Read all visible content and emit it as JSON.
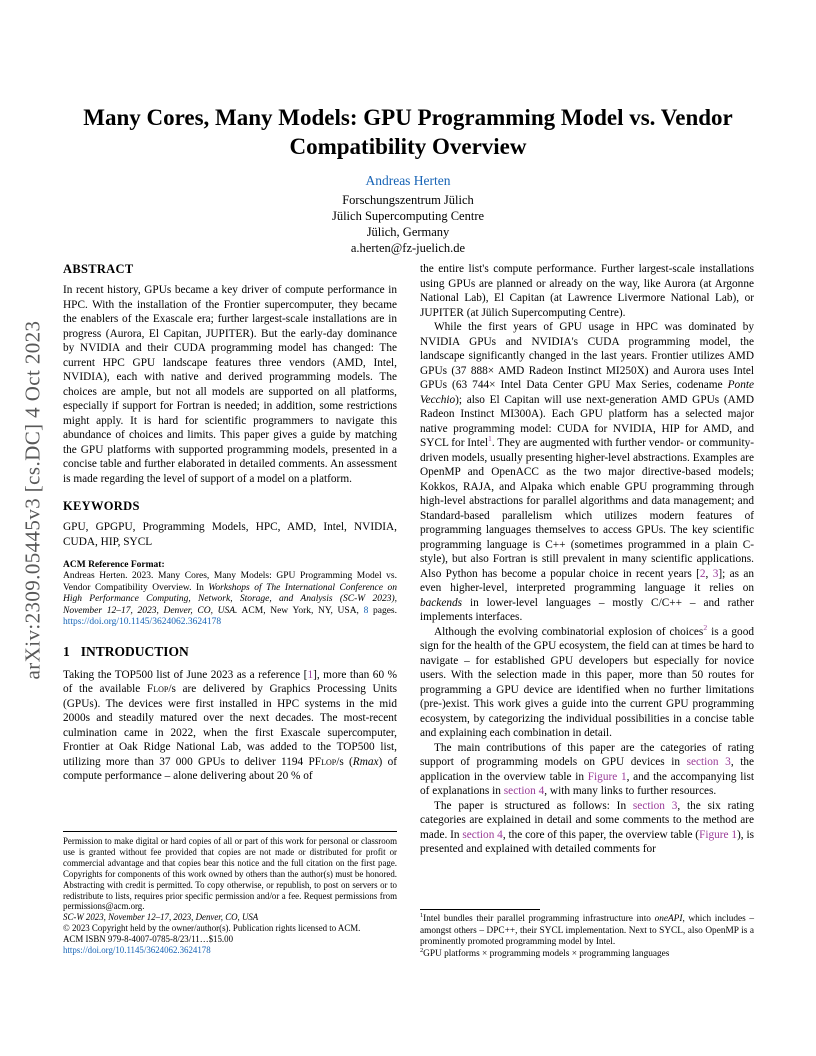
{
  "colors": {
    "link_blue": "#1663B5",
    "ref_purple": "#9A3C98",
    "watermark_gray": "#585858"
  },
  "sidebar": {
    "arxiv_label": "arXiv:2309.05445v3  [cs.DC]  4 Oct 2023"
  },
  "header": {
    "title_line1": "Many Cores, Many Models: GPU Programming Model vs. Vendor",
    "title_line2": "Compatibility Overview",
    "author": "Andreas Herten",
    "affiliation": [
      "Forschungszentrum Jülich",
      "Jülich Supercomputing Centre",
      "Jülich, Germany",
      "a.herten@fz-juelich.de"
    ]
  },
  "left_column": {
    "abstract_heading": "ABSTRACT",
    "abstract_text": "In recent history, GPUs became a key driver of compute performance in HPC. With the installation of the Frontier supercomputer, they became the enablers of the Exascale era; further largest-scale installations are in progress (Aurora, El Capitan, JUPITER). But the early-day dominance by NVIDIA and their CUDA programming model has changed: The current HPC GPU landscape features three vendors (AMD, Intel, NVIDIA), each with native and derived programming models. The choices are ample, but not all models are supported on all platforms, especially if support for Fortran is needed; in addition, some restrictions might apply. It is hard for scientific programmers to navigate this abundance of choices and limits. This paper gives a guide by matching the GPU platforms with supported programming models, presented in a concise table and further elaborated in detailed comments. An assessment is made regarding the level of support of a model on a platform.",
    "keywords_heading": "KEYWORDS",
    "keywords_text": "GPU, GPGPU, Programming Models, HPC, AMD, Intel, NVIDIA, CUDA, HIP, SYCL",
    "acm_ref_heading": "ACM Reference Format:",
    "acm_ref_segments": [
      {
        "t": "Andreas Herten. 2023. Many Cores, Many Models: GPU Programming Model vs. Vendor Compatibility Overview. In "
      },
      {
        "t": "Workshops of The International Conference on High Performance Computing, Network, Storage, and Analysis (SC-W 2023), November 12–17, 2023, Denver, CO, USA.",
        "c": "i"
      },
      {
        "t": " ACM, New York, NY, USA, "
      },
      {
        "t": "8",
        "c": "l",
        "n": "page-count-link"
      },
      {
        "t": " pages. "
      },
      {
        "t": "https://doi.org/10.1145/3624062.3624178",
        "c": "l",
        "n": "acm-ref-doi-link"
      }
    ],
    "intro_heading_num": "1",
    "intro_heading_text": "INTRODUCTION",
    "intro_segments": [
      {
        "t": "Taking the TOP500 list of June 2023 as a reference ["
      },
      {
        "t": "1",
        "c": "r",
        "n": "citation-1"
      },
      {
        "t": "], more than 60 % of the available F"
      },
      {
        "t": "lop",
        "c": "sc"
      },
      {
        "t": "/s are delivered by Graphics Processing Units (GPUs). The devices were first installed in HPC systems in the mid 2000s and steadily matured over the next decades. The most-recent culmination came in 2022, when the first Exascale supercomputer, Frontier at Oak Ridge National Lab, was added to the TOP500 list, utilizing more than 37 000 GPUs to deliver 1194 PF"
      },
      {
        "t": "lop",
        "c": "sc"
      },
      {
        "t": "/s ("
      },
      {
        "t": "Rmax",
        "c": "i"
      },
      {
        "t": ") of compute performance – alone delivering about 20 % of"
      }
    ],
    "permission_text": "Permission to make digital or hard copies of all or part of this work for personal or classroom use is granted without fee provided that copies are not made or distributed for profit or commercial advantage and that copies bear this notice and the full citation on the first page. Copyrights for components of this work owned by others than the author(s) must be honored. Abstracting with credit is permitted. To copy otherwise, or republish, to post on servers or to redistribute to lists, requires prior specific permission and/or a fee. Request permissions from permissions@acm.org.",
    "conference_line": "SC-W 2023, November 12–17, 2023, Denver, CO, USA",
    "copyright_line": "© 2023 Copyright held by the owner/author(s). Publication rights licensed to ACM.",
    "isbn_line": "ACM ISBN 979-8-4007-0785-8/23/11…$15.00",
    "doi_link": "https://doi.org/10.1145/3624062.3624178"
  },
  "right_column": {
    "para1": [
      {
        "t": "the entire list's compute performance. Further largest-scale installations using GPUs are planned or already on the way, like Aurora (at Argonne National Lab), El Capitan (at Lawrence Livermore National Lab), or JUPITER (at Jülich Supercomputing Centre)."
      }
    ],
    "para2": [
      {
        "t": "While the first years of GPU usage in HPC was dominated by NVIDIA GPUs and NVIDIA's CUDA programming model, the landscape significantly changed in the last years. Frontier utilizes AMD GPUs (37 888× AMD Radeon Instinct MI250X) and Aurora uses Intel GPUs (63 744× Intel Data Center GPU Max Series, codename "
      },
      {
        "t": "Ponte Vecchio",
        "c": "i"
      },
      {
        "t": "); also El Capitan will use next-generation AMD GPUs (AMD Radeon Instinct MI300A). Each GPU platform has a selected major native programming model: CUDA for NVIDIA, HIP for AMD, and SYCL for Intel"
      },
      {
        "t": "1",
        "c": "sl",
        "n": "footnote-1-marker"
      },
      {
        "t": ". They are augmented with further vendor- or community-driven models, usually presenting higher-level abstractions. Examples are OpenMP and OpenACC as the two major directive-based models; Kokkos, RAJA, and Alpaka which enable GPU programming through high-level abstractions for parallel algorithms and data management; and Standard-based parallelism which utilizes modern features of programming languages themselves to access GPUs. The key scientific programming language is C++ (sometimes programmed in a plain C-style), but also Fortran is still prevalent in many scientific applications. Also Python has become a popular choice in recent years ["
      },
      {
        "t": "2",
        "c": "r",
        "n": "citation-2"
      },
      {
        "t": ", "
      },
      {
        "t": "3",
        "c": "r",
        "n": "citation-3"
      },
      {
        "t": "]; as an even higher-level, interpreted programming language it relies on "
      },
      {
        "t": "backends",
        "c": "i"
      },
      {
        "t": " in lower-level languages – mostly C/C++ – and rather implements interfaces."
      }
    ],
    "para3": [
      {
        "t": "Although the evolving combinatorial explosion of choices"
      },
      {
        "t": "2",
        "c": "sl",
        "n": "footnote-2-marker"
      },
      {
        "t": " is a good sign for the health of the GPU ecosystem, the field can at times be hard to navigate – for established GPU developers but especially for novice users. With the selection made in this paper, more than 50 routes for programming a GPU device are identified when no further limitations (pre-)exist. This work gives a guide into the current GPU programming ecosystem, by categorizing the individual possibilities in a concise table and explaining each combination in detail."
      }
    ],
    "para4": [
      {
        "t": "The main contributions of this paper are the categories of rating support of programming models on GPU devices in "
      },
      {
        "t": "section 3",
        "c": "r",
        "n": "section-3-link"
      },
      {
        "t": ", the application in the overview table in "
      },
      {
        "t": "Figure 1",
        "c": "r",
        "n": "figure-1-link"
      },
      {
        "t": ", and the accompanying list of explanations in "
      },
      {
        "t": "section 4",
        "c": "r",
        "n": "section-4-link"
      },
      {
        "t": ", with many links to further resources."
      }
    ],
    "para5": [
      {
        "t": "The paper is structured as follows: In "
      },
      {
        "t": "section 3",
        "c": "r",
        "n": "section-3-link"
      },
      {
        "t": ", the six rating categories are explained in detail and some comments to the method are made. In "
      },
      {
        "t": "section 4",
        "c": "r",
        "n": "section-4-link"
      },
      {
        "t": ", the core of this paper, the overview table ("
      },
      {
        "t": "Figure 1",
        "c": "r",
        "n": "figure-1-link"
      },
      {
        "t": "), is presented and explained with detailed comments for"
      }
    ],
    "footnote1": [
      {
        "t": "1",
        "c": "sf"
      },
      {
        "t": "Intel bundles their parallel programming infrastructure into "
      },
      {
        "t": "oneAPI",
        "c": "i"
      },
      {
        "t": ", which includes – amongst others – DPC++, their SYCL implementation. Next to SYCL, also OpenMP is a prominently promoted programming model by Intel."
      }
    ],
    "footnote2": [
      {
        "t": "2",
        "c": "sf"
      },
      {
        "t": "GPU platforms × programming models × programming languages"
      }
    ]
  }
}
